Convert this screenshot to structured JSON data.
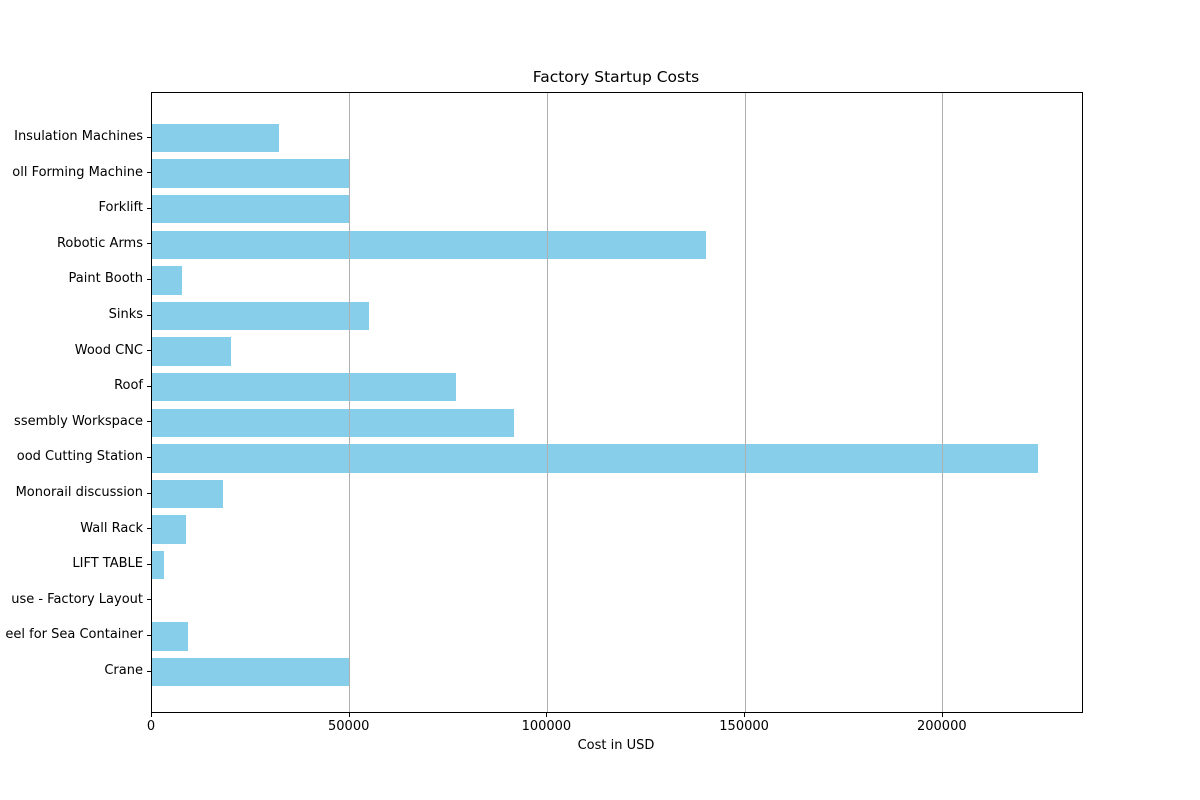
{
  "chart_data": {
    "type": "bar",
    "orientation": "horizontal",
    "title": "Factory Startup Costs",
    "xlabel": "Cost in USD",
    "ylabel": "",
    "categories": [
      "Insulation Machines",
      "oll Forming Machine",
      "Forklift",
      "Robotic Arms",
      "Paint Booth",
      "Sinks",
      "Wood CNC",
      "Roof",
      "ssembly Workspace",
      "ood Cutting Station",
      "Monorail discussion",
      "Wall Rack",
      "LIFT TABLE",
      "use - Factory Layout",
      "eel for Sea Container",
      "Crane"
    ],
    "values": [
      32000,
      50000,
      50000,
      140000,
      7500,
      55000,
      20000,
      77000,
      91500,
      224000,
      18000,
      8500,
      3000,
      0,
      9000,
      50000
    ],
    "category_order": "top-to-bottom",
    "x_ticks": [
      0,
      50000,
      100000,
      150000,
      200000
    ],
    "x_tick_labels": [
      "0",
      "50000",
      "100000",
      "150000",
      "200000"
    ],
    "xlim": [
      0,
      235200
    ],
    "bar_color": "#87CEEB",
    "grid": true,
    "grid_color": "#b0b0b0",
    "legend": "none"
  }
}
